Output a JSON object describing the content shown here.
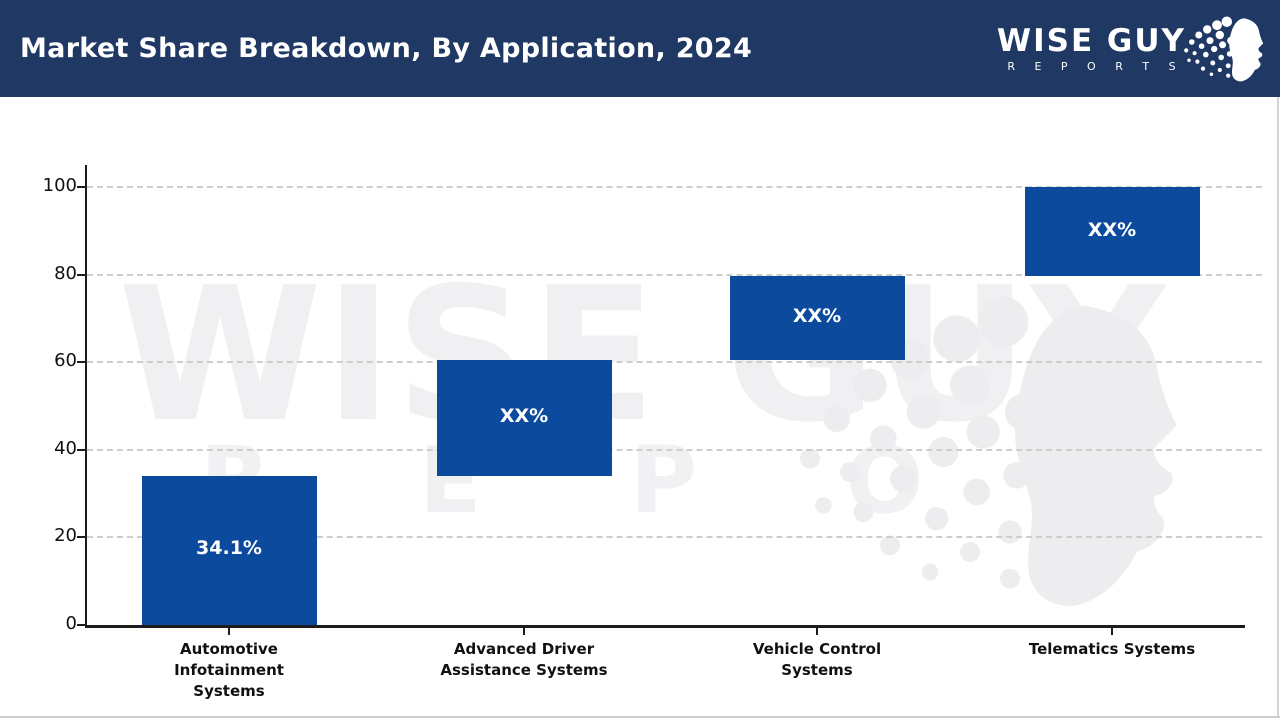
{
  "header": {
    "title": "Market Share Breakdown, By Application, 2024",
    "logo": {
      "brand": "WISE GUY",
      "sub": "R E P O R T S"
    }
  },
  "watermark": {
    "brand": "WISE GUY",
    "sub": "R E P O R T S"
  },
  "chart_data": {
    "type": "bar",
    "subtype": "waterfall",
    "title": "Market Share Breakdown, By Application, 2024",
    "xlabel": "",
    "ylabel": "",
    "ylim": [
      0,
      100
    ],
    "yticks": [
      0,
      20,
      40,
      60,
      80,
      100
    ],
    "grid": "horizontal-dashed",
    "legend": "none",
    "bar_color": "#0c4a9e",
    "bar_label_color": "#ffffff",
    "categories": [
      "Automotive Infotainment Systems",
      "Advanced Driver Assistance Systems",
      "Vehicle Control Systems",
      "Telematics Systems"
    ],
    "category_lines": [
      [
        "Automotive",
        "Infotainment",
        "Systems"
      ],
      [
        "Advanced Driver",
        "Assistance Systems"
      ],
      [
        "Vehicle Control",
        "Systems"
      ],
      [
        "Telematics Systems"
      ]
    ],
    "segments": [
      {
        "category": "Automotive Infotainment Systems",
        "start": 0,
        "end": 34.1,
        "value": 34.1,
        "label": "34.1%"
      },
      {
        "category": "Advanced Driver Assistance Systems",
        "start": 34.1,
        "end": 60.5,
        "value": 26.4,
        "label": "XX%"
      },
      {
        "category": "Vehicle Control Systems",
        "start": 60.5,
        "end": 79.6,
        "value": 19.1,
        "label": "XX%"
      },
      {
        "category": "Telematics Systems",
        "start": 79.6,
        "end": 100,
        "value": 20.4,
        "label": "XX%"
      }
    ]
  }
}
